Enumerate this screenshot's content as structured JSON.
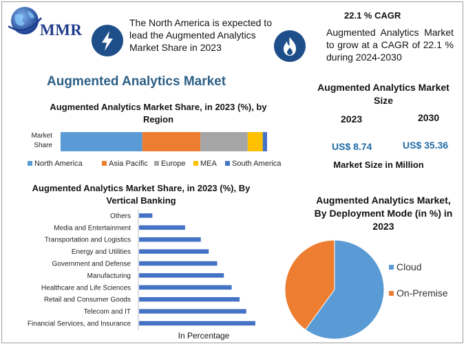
{
  "logo": {
    "text": "MMR"
  },
  "header": {
    "highlight_text": "The North America is expected to lead the Augmented Analytics Market Share in 2023",
    "cagr_title": "22.1 % CAGR",
    "cagr_text": "Augmented Analytics Market to grow at a CAGR of 22.1 % during 2024-2030",
    "icons": [
      "lightning-icon",
      "flame-icon"
    ]
  },
  "main_title": "Augmented Analytics Market",
  "market_size": {
    "title": "Augmented Analytics Market Size",
    "year_1": "2023",
    "year_2": "2030",
    "value_1": "US$ 8.74",
    "value_2": "US$ 35.36",
    "unit_label": "Market Size in Million"
  },
  "colors": {
    "north_america": "#5b9bd5",
    "asia_pacific": "#ed7d31",
    "europe": "#a5a5a5",
    "mea": "#ffc000",
    "south_america": "#4472c4",
    "bar": "#4472c4",
    "title_blue": "#2c5f86",
    "value_blue": "#1f6aa6"
  },
  "chart_data": [
    {
      "type": "bar",
      "title": "Augmented Analytics Market Share, in 2023 (%), by Region",
      "orientation": "horizontal-stacked",
      "categories": [
        "Market Share"
      ],
      "series": [
        {
          "name": "North America",
          "values": [
            38
          ]
        },
        {
          "name": "Asia Pacific",
          "values": [
            27
          ]
        },
        {
          "name": "Europe",
          "values": [
            22
          ]
        },
        {
          "name": "MEA",
          "values": [
            7
          ]
        },
        {
          "name": "South America",
          "values": [
            2
          ]
        }
      ],
      "xlim": [
        0,
        96
      ],
      "legend": "bottom"
    },
    {
      "type": "bar",
      "title": "Augmented Analytics Market Share, in 2023 (%), By Vertical Banking",
      "orientation": "horizontal",
      "xlabel": "In Percentage",
      "categories": [
        "Financial Services, and Insurance",
        "Telecom and IT",
        "Retail and Consumer Goods",
        "Healthcare and Life Sciences",
        "Manufacturing",
        "Government and Defense",
        "Energy and Utilities",
        "Transportation and Logistics",
        "Media and Entertainment",
        "Others"
      ],
      "values": [
        19.2,
        17.7,
        16.6,
        15.3,
        14.0,
        12.9,
        11.5,
        10.2,
        7.6,
        2.2
      ],
      "xlim": [
        0,
        25
      ]
    },
    {
      "type": "pie",
      "title": "Augmented Analytics Market, By Deployment Mode (in %) in 2023",
      "categories": [
        "Cloud",
        "On-Premise"
      ],
      "values": [
        60,
        40
      ],
      "legend": "right"
    }
  ]
}
